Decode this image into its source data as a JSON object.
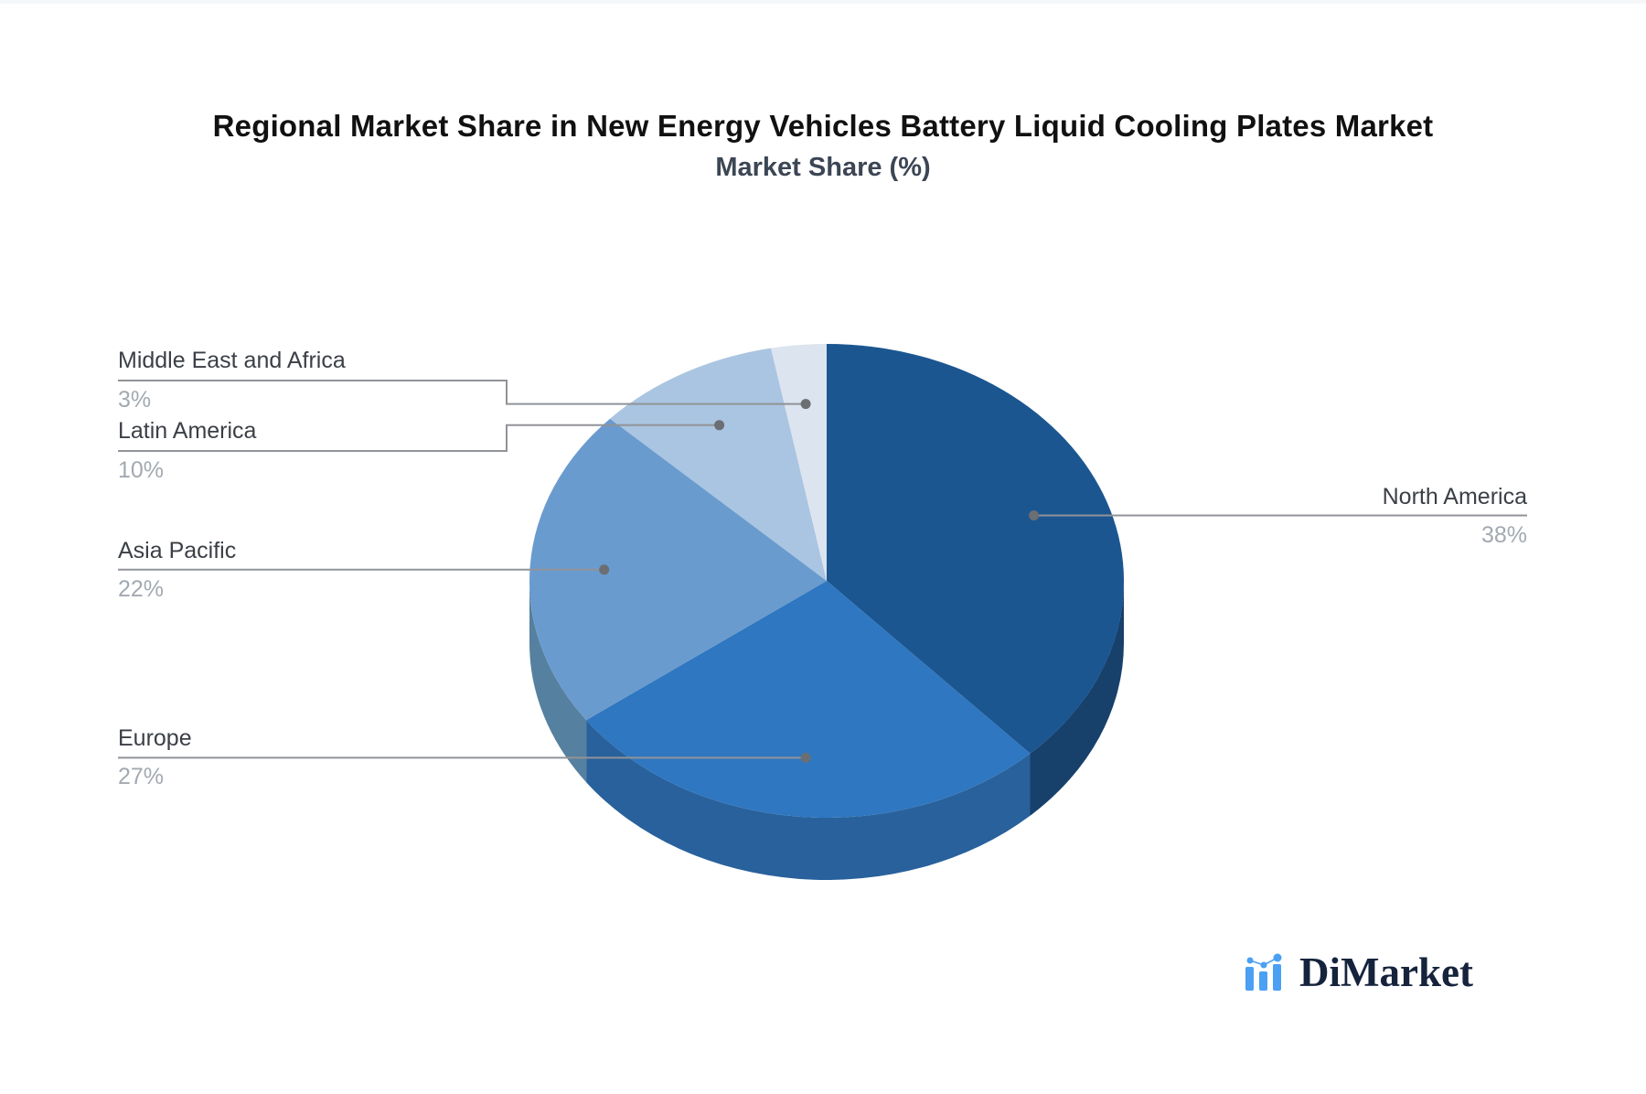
{
  "chart_data": {
    "type": "pie",
    "style": "3d",
    "title": "Regional Market Share in New Energy Vehicles Battery Liquid Cooling Plates Market",
    "subtitle": "Market Share (%)",
    "unit": "%",
    "legend": "none",
    "direction": "clockwise",
    "start_angle_deg": 0,
    "categories": [
      "North America",
      "Europe",
      "Asia Pacific",
      "Latin America",
      "Middle East and Africa"
    ],
    "values": [
      38,
      27,
      22,
      10,
      3
    ],
    "percent_labels": [
      "38%",
      "27%",
      "22%",
      "10%",
      "3%"
    ],
    "slice_colors": [
      "#1B5691",
      "#2F77C0",
      "#6A9BCE",
      "#AAC5E1",
      "#DCE4EF"
    ],
    "slice_side_colors": [
      "#17406B",
      "#28619C",
      "#56809F",
      "#8FA9C4",
      "#BFCBDC"
    ],
    "callout_line_color": "#909398",
    "callout_dot_color": "#6B6E72",
    "label_text_color": "#3B3F46",
    "percent_text_color": "#A3A9B1"
  },
  "branding": {
    "logo_text": "DiMarket",
    "logo_icon": "bar-line-chart-icon",
    "logo_text_color": "#16233C",
    "logo_icon_color": "#4BA0F3"
  }
}
